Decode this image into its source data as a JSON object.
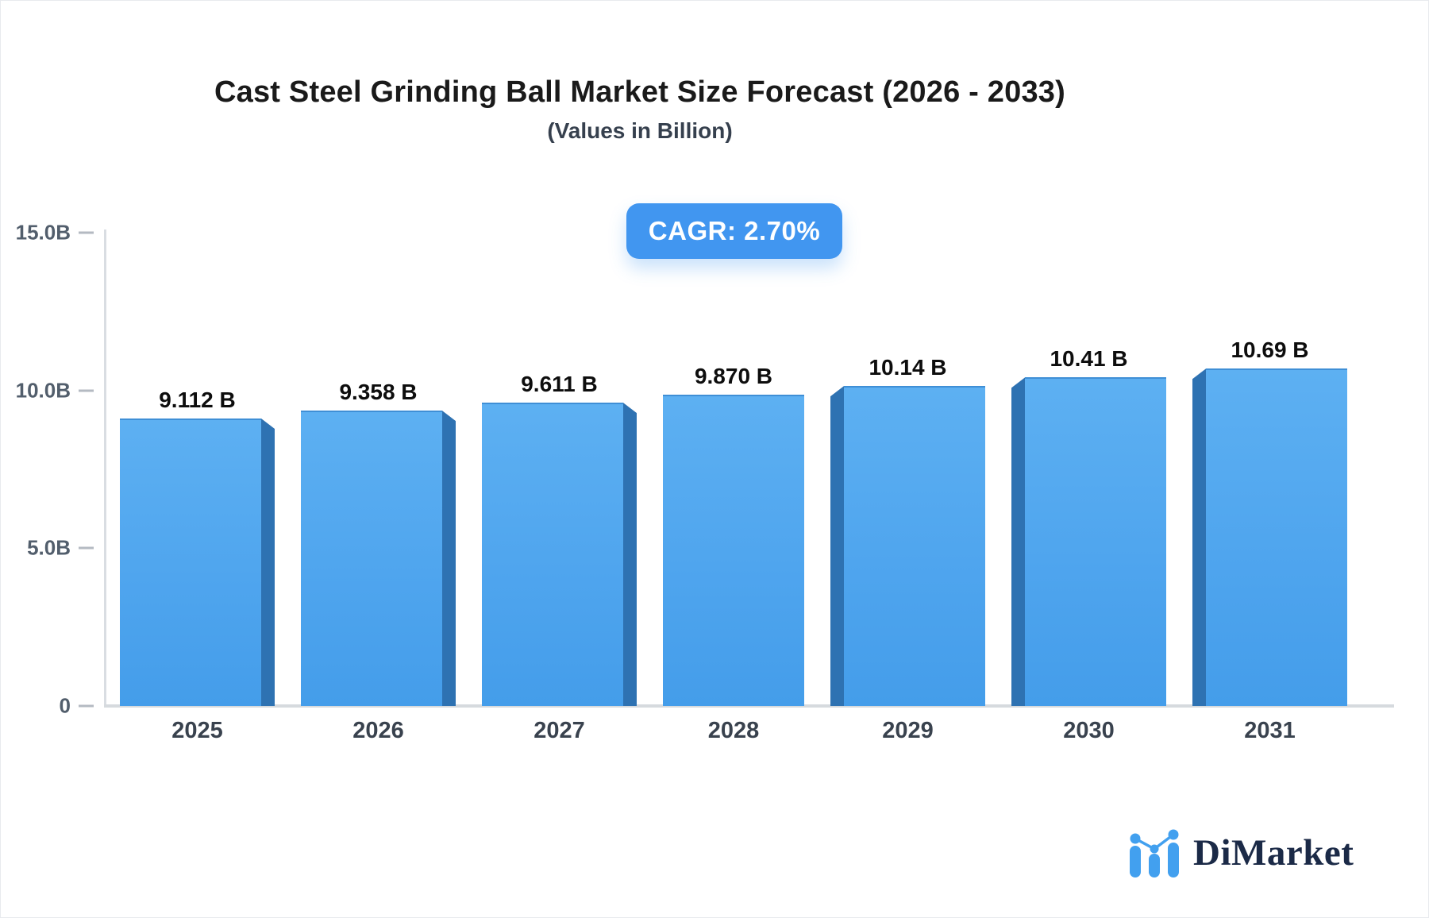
{
  "header": {
    "title": "Cast Steel Grinding Ball Market Size Forecast (2026 - 2033)",
    "subtitle": "(Values in Billion)",
    "cagr_badge": "CAGR: 2.70%"
  },
  "chart_data": {
    "type": "bar",
    "title": "Cast Steel Grinding Ball Market Size Forecast (2026 - 2033)",
    "subtitle": "(Values in Billion)",
    "categories": [
      "2025",
      "2026",
      "2027",
      "2028",
      "2029",
      "2030",
      "2031"
    ],
    "values": [
      9.112,
      9.358,
      9.611,
      9.87,
      10.14,
      10.41,
      10.69
    ],
    "value_labels": [
      "9.112 B",
      "9.358 B",
      "9.611 B",
      "9.870 B",
      "10.14 B",
      "10.41 B",
      "10.69 B"
    ],
    "yticks": [
      {
        "label": "15.0B",
        "value": 15
      },
      {
        "label": "10.0B",
        "value": 10
      },
      {
        "label": "5.0B",
        "value": 5
      },
      {
        "label": "0",
        "value": 0
      }
    ],
    "ylim": [
      0,
      15
    ],
    "xlabel": "",
    "ylabel": "",
    "grid": false,
    "legend": "none",
    "annotation": "CAGR: 2.70%",
    "style": "3d-perspective-bars"
  },
  "colors": {
    "bar_face": "#4fa5ee",
    "bar_face_top": "#5db0f2",
    "bar_face_bottom": "#449dea",
    "bar_side": "#2e72b2",
    "badge_bg": "#4196f0",
    "axis_line": "#d9dde2",
    "tick_text": "#525e6c",
    "logo_blue": "#42a0ef",
    "logo_navy": "#1b2a47"
  },
  "branding": {
    "logo_text": "DiMarket"
  }
}
